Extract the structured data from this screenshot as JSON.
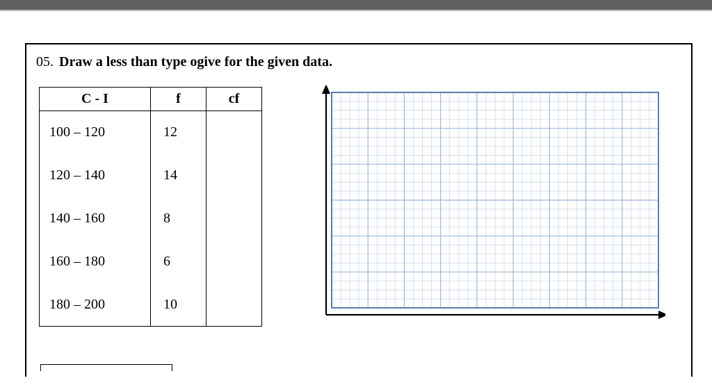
{
  "question": {
    "number": "05.",
    "text": "Draw a less than type ogive for the given data."
  },
  "table": {
    "headers": {
      "ci": "C - I",
      "f": "f",
      "cf": "cf"
    },
    "rows": [
      {
        "ci": "100 – 120",
        "f": "12",
        "cf": ""
      },
      {
        "ci": "120 – 140",
        "f": "14",
        "cf": ""
      },
      {
        "ci": "140 – 160",
        "f": "8",
        "cf": ""
      },
      {
        "ci": "160 – 180",
        "f": "6",
        "cf": ""
      },
      {
        "ci": "180 – 200",
        "f": "10",
        "cf": ""
      }
    ]
  },
  "grid": {
    "cols_major": 9,
    "rows_major": 6,
    "minor_per_major": 4,
    "axis_color": "#000000",
    "major_color": "#9fb8d9",
    "minor_color": "#cdd9ec",
    "border_color": "#5a7bb0"
  },
  "colors": {
    "top_bar": "#606060",
    "top_border": "#b8b8b8",
    "background": "#ffffff",
    "text": "#000000"
  }
}
